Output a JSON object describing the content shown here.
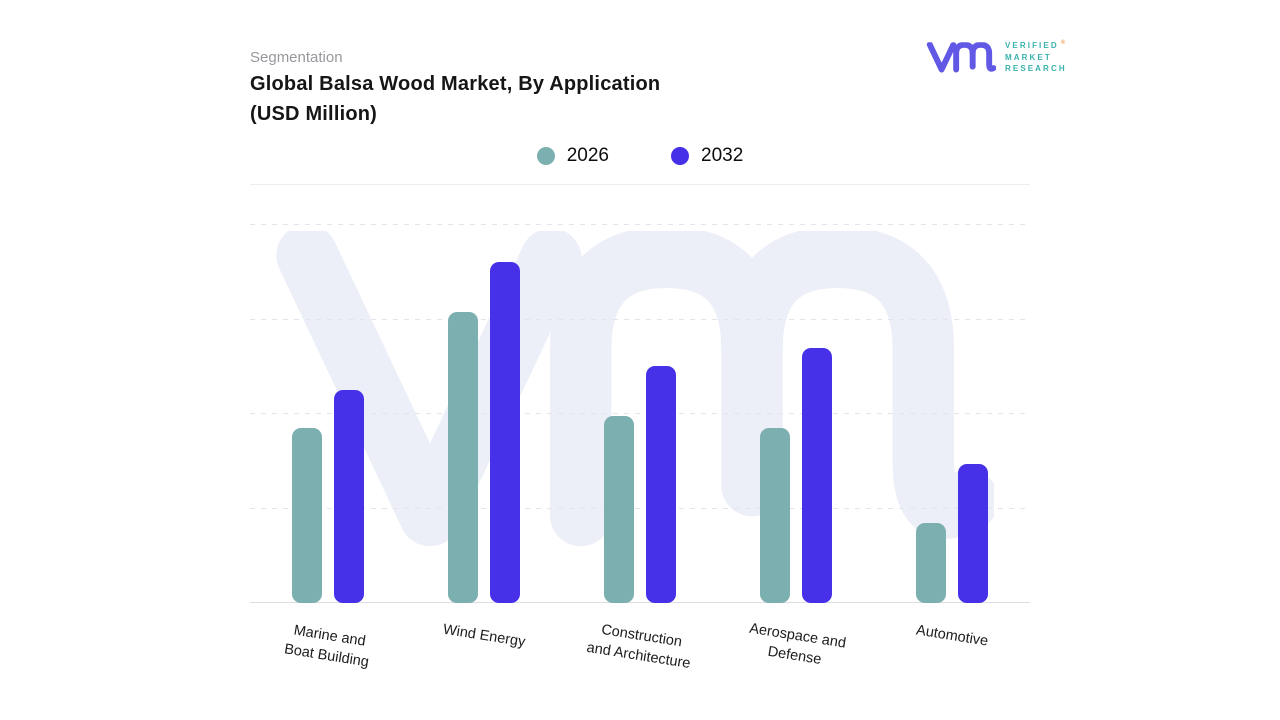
{
  "header": {
    "section_label": "Segmentation",
    "title_line1": "Global Balsa Wood Market, By Application",
    "title_line2": "(USD Million)"
  },
  "logo": {
    "glyph_icon": "vmr-monogram",
    "text_lines": [
      "VERIFIED",
      "MARKET",
      "RESEARCH"
    ],
    "registered_mark": "®",
    "colors": {
      "glyph": "#6159e6",
      "text": "#38b2ac",
      "registered": "#f0a35e"
    }
  },
  "legend": {
    "items": [
      {
        "label": "2026",
        "color": "#7cafb0"
      },
      {
        "label": "2032",
        "color": "#4731e8"
      }
    ]
  },
  "chart_data": {
    "type": "bar",
    "title": "Global Balsa Wood Market, By Application (USD Million)",
    "categories": [
      "Marine and Boat Building",
      "Wind Energy",
      "Construction and Architecture",
      "Aerospace and Defense",
      "Automotive"
    ],
    "category_label_lines": [
      [
        "Marine and",
        "Boat Building"
      ],
      [
        "Wind Energy"
      ],
      [
        "Construction",
        "and Architecture"
      ],
      [
        "Aerospace and",
        "Defense"
      ],
      [
        "Automotive"
      ]
    ],
    "series": [
      {
        "name": "2026",
        "color": "#7cafb0",
        "values_pct_of_plot_height": [
          46.3,
          77.0,
          49.5,
          46.3,
          21.2
        ]
      },
      {
        "name": "2032",
        "color": "#4731e8",
        "values_pct_of_plot_height": [
          56.3,
          90.2,
          62.7,
          67.5,
          36.8
        ]
      }
    ],
    "xlabel": "",
    "ylabel": "",
    "y_axis": {
      "tick_labels_visible": false,
      "gridline_count": 5,
      "gridline_style": "dashed",
      "range_pct": [
        0,
        100
      ]
    },
    "x_axis": {
      "label_rotation_deg": 9
    },
    "legend_position": "top-center",
    "grid": true,
    "watermark": {
      "icon": "vmr-monogram-watermark",
      "color": "#eceef8"
    }
  }
}
